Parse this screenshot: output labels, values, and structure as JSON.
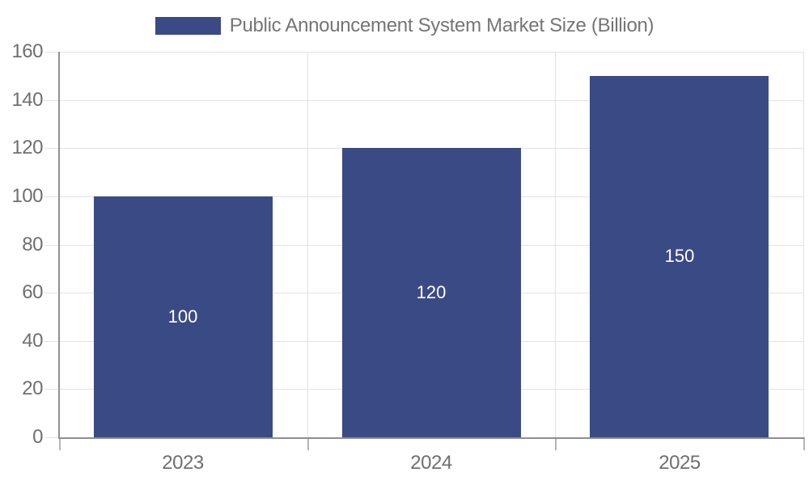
{
  "legend": {
    "label": "Public Announcement System Market Size (Billion)"
  },
  "chart_data": {
    "type": "bar",
    "title": "Public Announcement System Market Size (Billion)",
    "categories": [
      "2023",
      "2024",
      "2025"
    ],
    "values": [
      100,
      120,
      150
    ],
    "bar_labels": [
      "100",
      "120",
      "150"
    ],
    "xlabel": "",
    "ylabel": "",
    "ylim": [
      0,
      160
    ],
    "yticks": [
      0,
      20,
      40,
      60,
      80,
      100,
      120,
      140,
      160
    ],
    "grid": true,
    "legend_position": "top-center",
    "colors": {
      "bar": "#3a4a85",
      "bar_label_text": "#ffffff",
      "axis_text": "#6f6f6f",
      "title_text": "#757575",
      "gridline": "#e3e3e3",
      "axis_line": "#8f8f8f",
      "tick": "#b5b5b5"
    }
  }
}
